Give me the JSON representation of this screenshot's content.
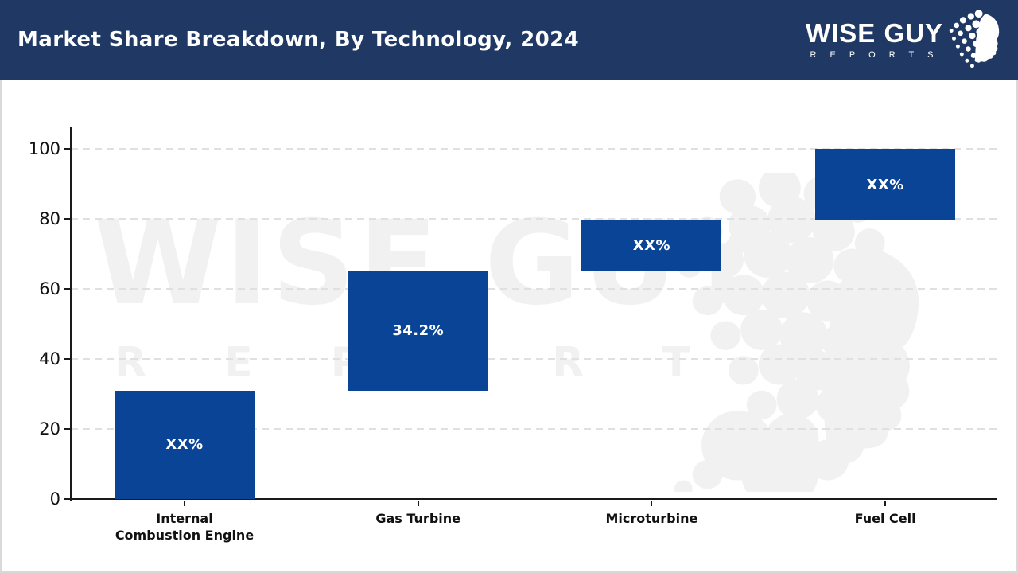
{
  "header": {
    "title": "Market Share Breakdown, By Technology, 2024",
    "logo": {
      "name_line": "WISE GUY",
      "sub_line": "R E P O R T S"
    }
  },
  "watermark": {
    "name_line": "WISE GUY",
    "sub_line": "R E P O R T S"
  },
  "colors": {
    "header_bg": "#203864",
    "bar_fill": "#0a4496",
    "bar_label": "#ffffff",
    "axis": "#1a1a1a",
    "gridline": "#e0e0e0",
    "watermark": "#f1f1f2",
    "frame_border": "#d9d9d9"
  },
  "chart_data": {
    "type": "bar",
    "subtype": "waterfall",
    "title": "Market Share Breakdown, By Technology, 2024",
    "categories": [
      "Internal Combustion Engine",
      "Gas Turbine",
      "Microturbine",
      "Fuel Cell"
    ],
    "category_lines": [
      [
        "Internal",
        "Combustion Engine"
      ],
      [
        "Gas Turbine"
      ],
      [
        "Microturbine"
      ],
      [
        "Fuel Cell"
      ]
    ],
    "bars": [
      {
        "category": "Internal Combustion Engine",
        "start": 0,
        "end": 31,
        "label": "XX%"
      },
      {
        "category": "Gas Turbine",
        "start": 31,
        "end": 65.2,
        "label": "34.2%"
      },
      {
        "category": "Microturbine",
        "start": 65.2,
        "end": 79.5,
        "label": "XX%"
      },
      {
        "category": "Fuel Cell",
        "start": 79.5,
        "end": 100,
        "label": "XX%"
      }
    ],
    "xlabel": "",
    "ylabel": "",
    "ylim": [
      0,
      100
    ],
    "yticks": [
      0,
      20,
      40,
      60,
      80,
      100
    ],
    "grid": "horizontal-dashed",
    "legend": "none"
  }
}
